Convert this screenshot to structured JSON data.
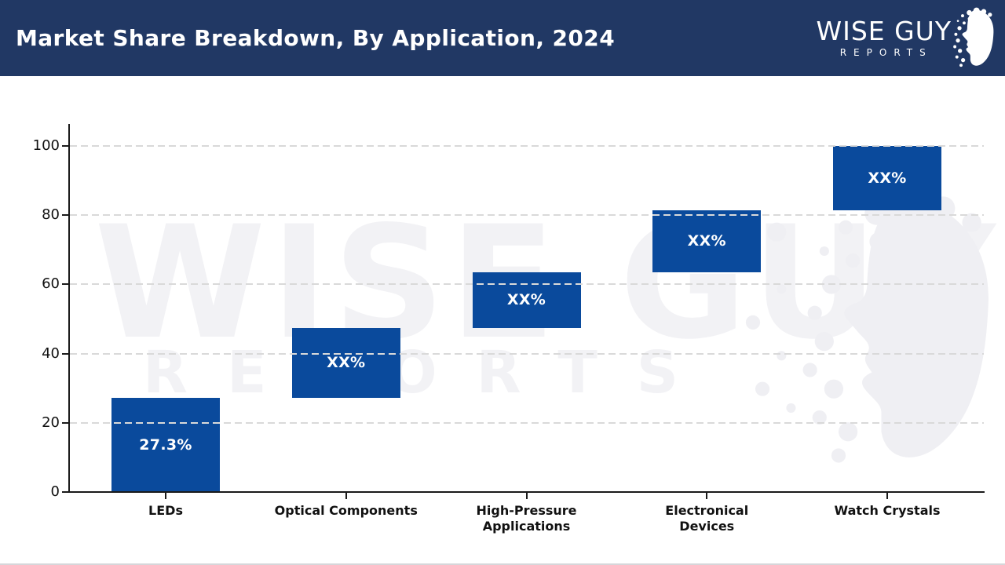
{
  "header": {
    "title": "Market Share Breakdown, By Application, 2024",
    "bg_color": "#213864",
    "logo": {
      "line1": "WISE GUY",
      "line2": "REPORTS"
    }
  },
  "watermark": {
    "line1": "WISE GUY",
    "line2": "REPORTS"
  },
  "chart_data": {
    "type": "bar",
    "subtype": "waterfall",
    "title": "Market Share Breakdown, By Application, 2024",
    "xlabel": "",
    "ylabel": "",
    "ylim": [
      0,
      100
    ],
    "yticks": [
      0,
      20,
      40,
      60,
      80,
      100
    ],
    "grid": "horizontal-dashed",
    "grid_color": "#d9d9d9",
    "bar_color": "#0a4a9c",
    "bar_label_color": "#ffffff",
    "axis_color": "#1a1a1a",
    "categories": [
      "LEDs",
      "Optical Components",
      "High-Pressure Applications",
      "Electronical Devices",
      "Watch Crystals"
    ],
    "category_lines": [
      [
        "LEDs"
      ],
      [
        "Optical Components"
      ],
      [
        "High-Pressure",
        "Applications"
      ],
      [
        "Electronical",
        "Devices"
      ],
      [
        "Watch Crystals"
      ]
    ],
    "segments": [
      {
        "category": "LEDs",
        "start": 0,
        "end": 27.3,
        "label": "27.3%"
      },
      {
        "category": "Optical Components",
        "start": 27.3,
        "end": 47.5,
        "label": "XX%"
      },
      {
        "category": "High-Pressure Applications",
        "start": 47.5,
        "end": 63.5,
        "label": "XX%"
      },
      {
        "category": "Electronical Devices",
        "start": 63.5,
        "end": 81.5,
        "label": "XX%"
      },
      {
        "category": "Watch Crystals",
        "start": 81.5,
        "end": 100,
        "label": "XX%"
      }
    ]
  }
}
